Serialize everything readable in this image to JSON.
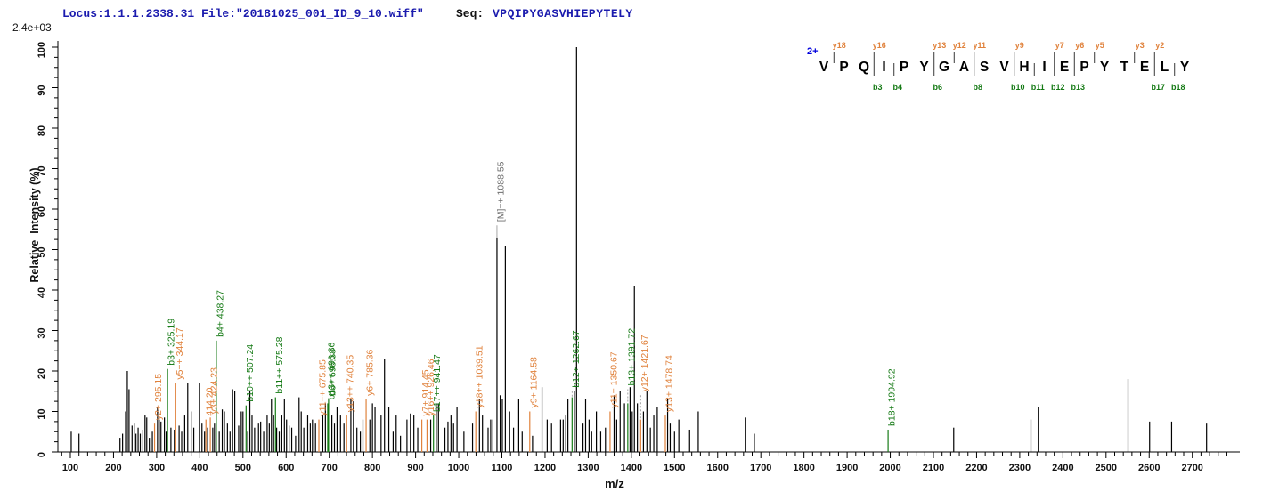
{
  "header": {
    "locus_file": "Locus:1.1.1.2338.31 File:\"20181025_001_ID_9_10.wiff\"",
    "seq_label": "Seq:",
    "seq_value": "VPQIPYGASVHIEPYTELY",
    "scale_note": "2.4e+03"
  },
  "colors": {
    "y_ion_orange": "#e0823c",
    "b_ion_green": "#157a15",
    "header_blue": "#1b1bae",
    "charge_blue": "#0000dd",
    "label_gray": "#6e6e6e",
    "peak_black": "#000000"
  },
  "peptide_map": {
    "charge": "2+",
    "residues": [
      "V",
      "P",
      "Q",
      "I",
      "P",
      "Y",
      "G",
      "A",
      "S",
      "V",
      "H",
      "I",
      "E",
      "P",
      "Y",
      "T",
      "E",
      "L",
      "Y"
    ],
    "y_ions": [
      {
        "label": "y18",
        "gap": 1
      },
      {
        "label": "y16",
        "gap": 3
      },
      {
        "label": "y13",
        "gap": 6
      },
      {
        "label": "y12",
        "gap": 7
      },
      {
        "label": "y11",
        "gap": 8
      },
      {
        "label": "y9",
        "gap": 10
      },
      {
        "label": "y7",
        "gap": 12
      },
      {
        "label": "y6",
        "gap": 13
      },
      {
        "label": "y5",
        "gap": 14
      },
      {
        "label": "y3",
        "gap": 16
      },
      {
        "label": "y2",
        "gap": 17
      }
    ],
    "b_ions": [
      {
        "label": "b3",
        "gap": 3
      },
      {
        "label": "b4",
        "gap": 4
      },
      {
        "label": "b6",
        "gap": 6
      },
      {
        "label": "b8",
        "gap": 8
      },
      {
        "label": "b10",
        "gap": 10
      },
      {
        "label": "b11",
        "gap": 11
      },
      {
        "label": "b12",
        "gap": 12
      },
      {
        "label": "b13",
        "gap": 13
      },
      {
        "label": "b17",
        "gap": 17
      },
      {
        "label": "b18",
        "gap": 18
      }
    ]
  },
  "chart_data": {
    "type": "bar",
    "subtype": "mass-spectrum",
    "title": "",
    "xlabel": "m/z",
    "ylabel": "Relative  Intensity (%)",
    "xlim": [
      70,
      2800
    ],
    "ylim": [
      0,
      100
    ],
    "x_major_tick_step": 100,
    "x_major_tick_start": 100,
    "x_major_tick_end": 2700,
    "x_minor_tick_step": 20,
    "y_major_tick_step": 10,
    "y_minor_tick_step": 2.5,
    "grid": false,
    "peaks": [
      {
        "m": 295.15,
        "i": 7,
        "c": "y",
        "l": "y2+ 295.15"
      },
      {
        "m": 325.19,
        "i": 20.5,
        "c": "b",
        "l": "b3+ 325.19"
      },
      {
        "m": 344.17,
        "i": 17,
        "c": "y",
        "l": "y5++ 344.17"
      },
      {
        "m": 414.2,
        "i": 8,
        "c": "y",
        "l": "414.20"
      },
      {
        "m": 424.23,
        "i": 8.5,
        "c": "y",
        "l": "y3+ 424.23"
      },
      {
        "m": 438.27,
        "i": 27.5,
        "c": "b",
        "l": "b4+ 438.27"
      },
      {
        "m": 507.24,
        "i": 11.5,
        "c": "b",
        "l": "b10++ 507.24"
      },
      {
        "m": 575.28,
        "i": 13.5,
        "c": "b",
        "l": "b11++ 575.28"
      },
      {
        "m": 675.85,
        "i": 8,
        "c": "y",
        "l": "y11++ 675.85"
      },
      {
        "m": 696.36,
        "i": 12,
        "c": "b",
        "l": "b13++ 696.36"
      },
      {
        "m": 698.38,
        "i": 13,
        "c": "b",
        "l": "b6+ 698.38"
      },
      {
        "m": 740.35,
        "i": 9,
        "c": "y",
        "l": "y13++ 740.35"
      },
      {
        "m": 785.36,
        "i": 13,
        "c": "y",
        "l": "y6+ 785.36"
      },
      {
        "m": 914.45,
        "i": 8,
        "c": "y",
        "l": "y7+ 914.45"
      },
      {
        "m": 926.46,
        "i": 8,
        "c": "y",
        "l": "y16++ 926.46"
      },
      {
        "m": 941.47,
        "i": 9,
        "c": "b",
        "l": "b17++ 941.47"
      },
      {
        "m": 1039.51,
        "i": 10,
        "c": "y",
        "l": "y18++ 1039.51"
      },
      {
        "m": 1088.55,
        "i": 53,
        "c": "k",
        "l": "[M]++ 1088.55",
        "la": 56
      },
      {
        "m": 1164.58,
        "i": 10,
        "c": "y",
        "l": "y9+ 1164.58"
      },
      {
        "m": 1262.67,
        "i": 13.5,
        "c": "b",
        "l": "b12+ 1262.67",
        "la": 15
      },
      {
        "m": 1350.67,
        "i": 10,
        "c": "y",
        "l": "y11+ 1350.67"
      },
      {
        "m": 1391.72,
        "i": 12,
        "c": "b",
        "l": "b13+ 1391.72",
        "la": 15.5
      },
      {
        "m": 1421.67,
        "i": 8,
        "c": "y",
        "l": "y12+ 1421.67",
        "la": 14
      },
      {
        "m": 1478.74,
        "i": 9,
        "c": "y",
        "l": "y13+ 1478.74"
      },
      {
        "m": 1994.92,
        "i": 5.5,
        "c": "b",
        "l": "b18+ 1994.92"
      },
      {
        "m": 102,
        "i": 5,
        "c": "k"
      },
      {
        "m": 120,
        "i": 4.5,
        "c": "k"
      },
      {
        "m": 215,
        "i": 3.5,
        "c": "k"
      },
      {
        "m": 221,
        "i": 4.5,
        "c": "k"
      },
      {
        "m": 228,
        "i": 10,
        "c": "k"
      },
      {
        "m": 232,
        "i": 20,
        "c": "k"
      },
      {
        "m": 236,
        "i": 15.5,
        "c": "k"
      },
      {
        "m": 243,
        "i": 6.5,
        "c": "k"
      },
      {
        "m": 248,
        "i": 7,
        "c": "k"
      },
      {
        "m": 252,
        "i": 4.5,
        "c": "k"
      },
      {
        "m": 257,
        "i": 6,
        "c": "k"
      },
      {
        "m": 262,
        "i": 4.5,
        "c": "k"
      },
      {
        "m": 268,
        "i": 5.5,
        "c": "k"
      },
      {
        "m": 273,
        "i": 9,
        "c": "k"
      },
      {
        "m": 277,
        "i": 8.5,
        "c": "k"
      },
      {
        "m": 283,
        "i": 3.5,
        "c": "k"
      },
      {
        "m": 290,
        "i": 5,
        "c": "k"
      },
      {
        "m": 302,
        "i": 11,
        "c": "k"
      },
      {
        "m": 306,
        "i": 8,
        "c": "k"
      },
      {
        "m": 310,
        "i": 7.5,
        "c": "k"
      },
      {
        "m": 318,
        "i": 8.5,
        "c": "k"
      },
      {
        "m": 322,
        "i": 5,
        "c": "k"
      },
      {
        "m": 333,
        "i": 6,
        "c": "k"
      },
      {
        "m": 341,
        "i": 5.5,
        "c": "k"
      },
      {
        "m": 352,
        "i": 6.5,
        "c": "k"
      },
      {
        "m": 358,
        "i": 5,
        "c": "k"
      },
      {
        "m": 365,
        "i": 9,
        "c": "k"
      },
      {
        "m": 372,
        "i": 17,
        "c": "k"
      },
      {
        "m": 380,
        "i": 10,
        "c": "k"
      },
      {
        "m": 386,
        "i": 6,
        "c": "k"
      },
      {
        "m": 399,
        "i": 17,
        "c": "k"
      },
      {
        "m": 405,
        "i": 7,
        "c": "k"
      },
      {
        "m": 411,
        "i": 5,
        "c": "k"
      },
      {
        "m": 418,
        "i": 6,
        "c": "k"
      },
      {
        "m": 430,
        "i": 6,
        "c": "k"
      },
      {
        "m": 434,
        "i": 7,
        "c": "k"
      },
      {
        "m": 445,
        "i": 5,
        "c": "k"
      },
      {
        "m": 452,
        "i": 10.5,
        "c": "k"
      },
      {
        "m": 457,
        "i": 10,
        "c": "k"
      },
      {
        "m": 464,
        "i": 7,
        "c": "k"
      },
      {
        "m": 470,
        "i": 5,
        "c": "k"
      },
      {
        "m": 476,
        "i": 15.5,
        "c": "k"
      },
      {
        "m": 481,
        "i": 15,
        "c": "k"
      },
      {
        "m": 490,
        "i": 6.5,
        "c": "k"
      },
      {
        "m": 496,
        "i": 10,
        "c": "k"
      },
      {
        "m": 500,
        "i": 10,
        "c": "k"
      },
      {
        "m": 511,
        "i": 5,
        "c": "k"
      },
      {
        "m": 516,
        "i": 15,
        "c": "k"
      },
      {
        "m": 521,
        "i": 9,
        "c": "k"
      },
      {
        "m": 527,
        "i": 6,
        "c": "k"
      },
      {
        "m": 536,
        "i": 7,
        "c": "k"
      },
      {
        "m": 541,
        "i": 7.5,
        "c": "k"
      },
      {
        "m": 548,
        "i": 5,
        "c": "k"
      },
      {
        "m": 556,
        "i": 9,
        "c": "k"
      },
      {
        "m": 561,
        "i": 7,
        "c": "k"
      },
      {
        "m": 566,
        "i": 13,
        "c": "k"
      },
      {
        "m": 571,
        "i": 9,
        "c": "k"
      },
      {
        "m": 578,
        "i": 6,
        "c": "k"
      },
      {
        "m": 584,
        "i": 5,
        "c": "k"
      },
      {
        "m": 590,
        "i": 9,
        "c": "k"
      },
      {
        "m": 596,
        "i": 13,
        "c": "k"
      },
      {
        "m": 601,
        "i": 8,
        "c": "k"
      },
      {
        "m": 607,
        "i": 6.5,
        "c": "k"
      },
      {
        "m": 613,
        "i": 6,
        "c": "k"
      },
      {
        "m": 622,
        "i": 4,
        "c": "k"
      },
      {
        "m": 630,
        "i": 13.5,
        "c": "k"
      },
      {
        "m": 635,
        "i": 10,
        "c": "k"
      },
      {
        "m": 641,
        "i": 6,
        "c": "k"
      },
      {
        "m": 650,
        "i": 9,
        "c": "k"
      },
      {
        "m": 656,
        "i": 7,
        "c": "k"
      },
      {
        "m": 661,
        "i": 8,
        "c": "k"
      },
      {
        "m": 668,
        "i": 7,
        "c": "k"
      },
      {
        "m": 685,
        "i": 9,
        "c": "k"
      },
      {
        "m": 691,
        "i": 12,
        "c": "k"
      },
      {
        "m": 706,
        "i": 9,
        "c": "k"
      },
      {
        "m": 712,
        "i": 7,
        "c": "k"
      },
      {
        "m": 718,
        "i": 11,
        "c": "k"
      },
      {
        "m": 726,
        "i": 9,
        "c": "k"
      },
      {
        "m": 734,
        "i": 7,
        "c": "k"
      },
      {
        "m": 750,
        "i": 13,
        "c": "k"
      },
      {
        "m": 756,
        "i": 12.5,
        "c": "k"
      },
      {
        "m": 764,
        "i": 6,
        "c": "k"
      },
      {
        "m": 772,
        "i": 5,
        "c": "k"
      },
      {
        "m": 778,
        "i": 8,
        "c": "k"
      },
      {
        "m": 794,
        "i": 8,
        "c": "k"
      },
      {
        "m": 800,
        "i": 12,
        "c": "k"
      },
      {
        "m": 806,
        "i": 11,
        "c": "k"
      },
      {
        "m": 820,
        "i": 9,
        "c": "k"
      },
      {
        "m": 828,
        "i": 23,
        "c": "k"
      },
      {
        "m": 838,
        "i": 11,
        "c": "k"
      },
      {
        "m": 848,
        "i": 5,
        "c": "k"
      },
      {
        "m": 855,
        "i": 9,
        "c": "k"
      },
      {
        "m": 865,
        "i": 4,
        "c": "k"
      },
      {
        "m": 880,
        "i": 8,
        "c": "k"
      },
      {
        "m": 888,
        "i": 9.5,
        "c": "k"
      },
      {
        "m": 896,
        "i": 9,
        "c": "k"
      },
      {
        "m": 905,
        "i": 6,
        "c": "k"
      },
      {
        "m": 935,
        "i": 8,
        "c": "k"
      },
      {
        "m": 948,
        "i": 12,
        "c": "k"
      },
      {
        "m": 953,
        "i": 12,
        "c": "k"
      },
      {
        "m": 968,
        "i": 6,
        "c": "k"
      },
      {
        "m": 975,
        "i": 7.5,
        "c": "k"
      },
      {
        "m": 982,
        "i": 9,
        "c": "k"
      },
      {
        "m": 988,
        "i": 7,
        "c": "k"
      },
      {
        "m": 996,
        "i": 11,
        "c": "k"
      },
      {
        "m": 1012,
        "i": 5,
        "c": "k"
      },
      {
        "m": 1032,
        "i": 7,
        "c": "k"
      },
      {
        "m": 1048,
        "i": 13,
        "c": "k"
      },
      {
        "m": 1055,
        "i": 9,
        "c": "k"
      },
      {
        "m": 1068,
        "i": 6,
        "c": "k"
      },
      {
        "m": 1074,
        "i": 8,
        "c": "k"
      },
      {
        "m": 1079,
        "i": 8,
        "c": "k"
      },
      {
        "m": 1096,
        "i": 14,
        "c": "k"
      },
      {
        "m": 1101,
        "i": 13,
        "c": "k"
      },
      {
        "m": 1108,
        "i": 51,
        "c": "k"
      },
      {
        "m": 1118,
        "i": 10,
        "c": "k"
      },
      {
        "m": 1127,
        "i": 6,
        "c": "k"
      },
      {
        "m": 1139,
        "i": 13,
        "c": "k"
      },
      {
        "m": 1147,
        "i": 5,
        "c": "k"
      },
      {
        "m": 1171,
        "i": 4,
        "c": "k"
      },
      {
        "m": 1193,
        "i": 16,
        "c": "k"
      },
      {
        "m": 1205,
        "i": 8,
        "c": "k"
      },
      {
        "m": 1215,
        "i": 7,
        "c": "k"
      },
      {
        "m": 1236,
        "i": 8,
        "c": "k"
      },
      {
        "m": 1242,
        "i": 8,
        "c": "k"
      },
      {
        "m": 1248,
        "i": 9,
        "c": "k"
      },
      {
        "m": 1253,
        "i": 13,
        "c": "k"
      },
      {
        "m": 1268,
        "i": 15,
        "c": "k"
      },
      {
        "m": 1273,
        "i": 100,
        "c": "k"
      },
      {
        "m": 1288,
        "i": 7,
        "c": "k"
      },
      {
        "m": 1294,
        "i": 13,
        "c": "k"
      },
      {
        "m": 1302,
        "i": 8,
        "c": "k"
      },
      {
        "m": 1308,
        "i": 5,
        "c": "k"
      },
      {
        "m": 1319,
        "i": 10,
        "c": "k"
      },
      {
        "m": 1329,
        "i": 5,
        "c": "k"
      },
      {
        "m": 1340,
        "i": 6,
        "c": "k"
      },
      {
        "m": 1360,
        "i": 14,
        "c": "k"
      },
      {
        "m": 1366,
        "i": 8,
        "c": "k"
      },
      {
        "m": 1374,
        "i": 15,
        "c": "k"
      },
      {
        "m": 1384,
        "i": 12,
        "c": "k"
      },
      {
        "m": 1397,
        "i": 16,
        "c": "k"
      },
      {
        "m": 1402,
        "i": 10,
        "c": "k"
      },
      {
        "m": 1407,
        "i": 41,
        "c": "k"
      },
      {
        "m": 1414,
        "i": 12,
        "c": "k"
      },
      {
        "m": 1428,
        "i": 10,
        "c": "k"
      },
      {
        "m": 1436,
        "i": 15,
        "c": "k"
      },
      {
        "m": 1444,
        "i": 6,
        "c": "k"
      },
      {
        "m": 1452,
        "i": 9,
        "c": "k"
      },
      {
        "m": 1460,
        "i": 11,
        "c": "k"
      },
      {
        "m": 1484,
        "i": 13,
        "c": "k"
      },
      {
        "m": 1490,
        "i": 7,
        "c": "k"
      },
      {
        "m": 1500,
        "i": 5,
        "c": "k"
      },
      {
        "m": 1510,
        "i": 8,
        "c": "k"
      },
      {
        "m": 1535,
        "i": 5.5,
        "c": "k"
      },
      {
        "m": 1555,
        "i": 10,
        "c": "k"
      },
      {
        "m": 1665,
        "i": 8.5,
        "c": "k"
      },
      {
        "m": 1685,
        "i": 4.5,
        "c": "k"
      },
      {
        "m": 2147,
        "i": 6,
        "c": "k"
      },
      {
        "m": 2326,
        "i": 8,
        "c": "k"
      },
      {
        "m": 2343,
        "i": 11,
        "c": "k"
      },
      {
        "m": 2551,
        "i": 18,
        "c": "k"
      },
      {
        "m": 2601,
        "i": 7.5,
        "c": "k"
      },
      {
        "m": 2652,
        "i": 7.5,
        "c": "k"
      },
      {
        "m": 2733,
        "i": 7,
        "c": "k"
      }
    ]
  }
}
